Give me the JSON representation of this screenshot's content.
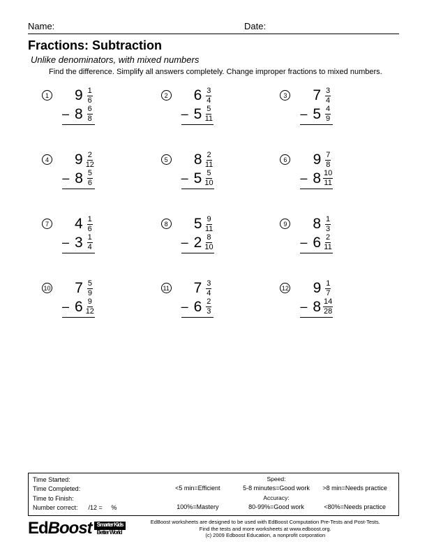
{
  "header": {
    "name_label": "Name:",
    "date_label": "Date:"
  },
  "title": "Fractions: Subtraction",
  "subtitle": "Unlike denominators, with mixed numbers",
  "instructions": "Find the difference.  Simplify all answers completely.  Change improper fractions to mixed numbers.",
  "operator": "–",
  "problems": [
    {
      "n": "1",
      "a_whole": "9",
      "a_num": "1",
      "a_den": "6",
      "b_whole": "8",
      "b_num": "6",
      "b_den": "8"
    },
    {
      "n": "2",
      "a_whole": "6",
      "a_num": "3",
      "a_den": "4",
      "b_whole": "5",
      "b_num": "5",
      "b_den": "11"
    },
    {
      "n": "3",
      "a_whole": "7",
      "a_num": "3",
      "a_den": "4",
      "b_whole": "5",
      "b_num": "4",
      "b_den": "9"
    },
    {
      "n": "4",
      "a_whole": "9",
      "a_num": "2",
      "a_den": "12",
      "b_whole": "8",
      "b_num": "5",
      "b_den": "6"
    },
    {
      "n": "5",
      "a_whole": "8",
      "a_num": "2",
      "a_den": "11",
      "b_whole": "5",
      "b_num": "5",
      "b_den": "10"
    },
    {
      "n": "6",
      "a_whole": "9",
      "a_num": "7",
      "a_den": "8",
      "b_whole": "8",
      "b_num": "10",
      "b_den": "11"
    },
    {
      "n": "7",
      "a_whole": "4",
      "a_num": "1",
      "a_den": "6",
      "b_whole": "3",
      "b_num": "1",
      "b_den": "4"
    },
    {
      "n": "8",
      "a_whole": "5",
      "a_num": "9",
      "a_den": "11",
      "b_whole": "2",
      "b_num": "8",
      "b_den": "10"
    },
    {
      "n": "9",
      "a_whole": "8",
      "a_num": "1",
      "a_den": "3",
      "b_whole": "6",
      "b_num": "2",
      "b_den": "11"
    },
    {
      "n": "10",
      "a_whole": "7",
      "a_num": "5",
      "a_den": "9",
      "b_whole": "6",
      "b_num": "9",
      "b_den": "12"
    },
    {
      "n": "11",
      "a_whole": "7",
      "a_num": "3",
      "a_den": "4",
      "b_whole": "6",
      "b_num": "2",
      "b_den": "3"
    },
    {
      "n": "12",
      "a_whole": "9",
      "a_num": "1",
      "a_den": "7",
      "b_whole": "8",
      "b_num": "14",
      "b_den": "28"
    }
  ],
  "score": {
    "time_started": "Time Started:",
    "time_completed": "Time Completed:",
    "time_finish": "Time to Finish:",
    "number_correct": "Number correct:",
    "denom": "/12 =",
    "pct": "%",
    "speed_label": "Speed:",
    "speed1": "<5 min=Efficient",
    "speed2": "5-8 minutes=Good work",
    "speed3": ">8 min=Needs practice",
    "acc_label": "Accuracy:",
    "acc1": "100%=Mastery",
    "acc2": "80-99%=Good work",
    "acc3": "<80%=Needs practice"
  },
  "brand": {
    "ed": "Ed",
    "boost": "Boost",
    "tag1": "Smarter Kids",
    "tag2": "Better World"
  },
  "fineprint": {
    "l1": "EdBoost worksheets are designed to be used with EdBoost Computation Pre-Tests and Post-Tests.",
    "l2": "Find the tests and more worksheets at www.edboost.org.",
    "l3": "(c) 2009 Edboost Education, a nonprofit corporation"
  },
  "colors": {
    "text": "#000000",
    "bg": "#ffffff"
  }
}
